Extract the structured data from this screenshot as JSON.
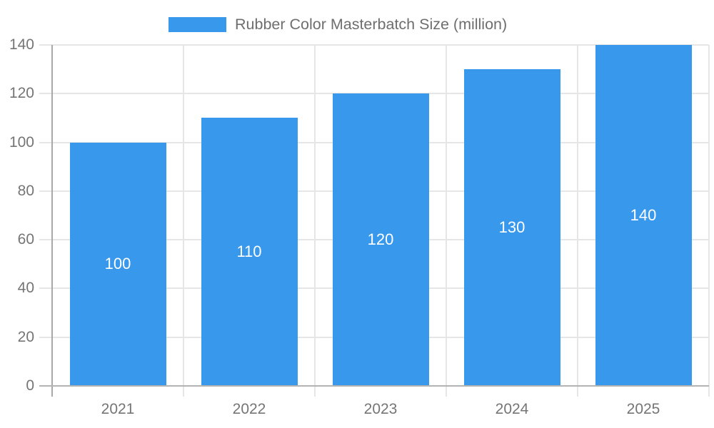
{
  "chart_data": {
    "type": "bar",
    "title": "Rubber Color Masterbatch Size (million)",
    "categories": [
      "2021",
      "2022",
      "2023",
      "2024",
      "2025"
    ],
    "values": [
      100,
      110,
      120,
      130,
      140
    ],
    "data_labels": [
      "100",
      "110",
      "120",
      "130",
      "140"
    ],
    "xlabel": "",
    "ylabel": "",
    "ylim": [
      0,
      140
    ],
    "ytick_step": 20,
    "yticks": [
      0,
      20,
      40,
      60,
      80,
      100,
      120,
      140
    ],
    "grid": true,
    "legend_position": "top",
    "colors": {
      "bar": "#3898ec",
      "gridline": "#e6e6e6",
      "x_axis_line": "#b3b3b3",
      "y_axis_line": "#a8a8a8",
      "tick_label": "#757575",
      "legend_text": "#6e6e6e",
      "data_label": "#ffffff",
      "background": "#ffffff"
    }
  },
  "legend": {
    "label": "Rubber Color Masterbatch Size (million)"
  }
}
